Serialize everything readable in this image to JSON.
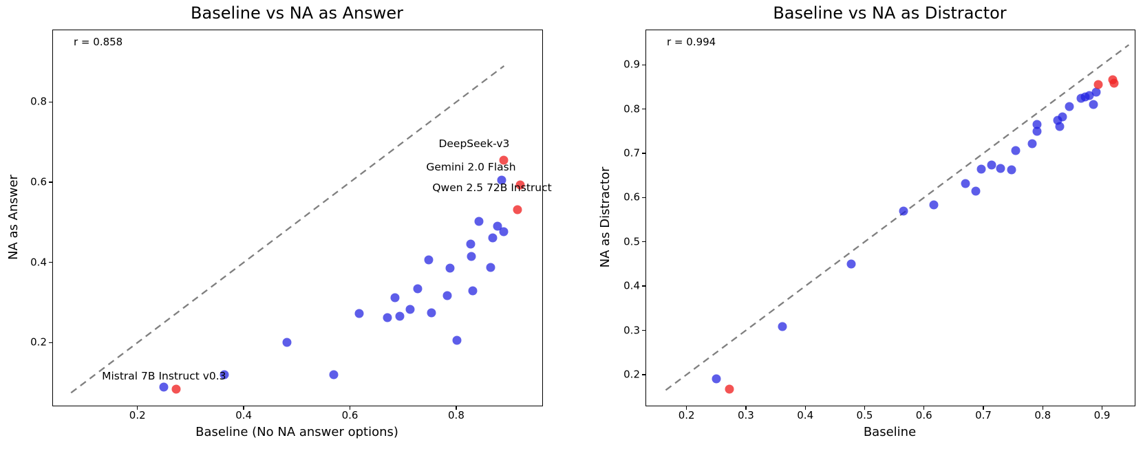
{
  "figure": {
    "background": "#ffffff"
  },
  "colors": {
    "blue_marker": "rgba(30,30,225,0.72)",
    "red_marker": "rgba(240,35,35,0.78)",
    "identity_line": "#7f7f7f",
    "spine": "#000000",
    "text": "#000000"
  },
  "chart_data": [
    {
      "type": "scatter",
      "title": "Baseline vs NA as Answer",
      "r_annotation": "r = 0.858",
      "xlabel": "Baseline (No NA answer options)",
      "ylabel": "NA as Answer",
      "xticks": [
        "0.2",
        "0.4",
        "0.6",
        "0.8"
      ],
      "yticks": [
        "0.2",
        "0.4",
        "0.6",
        "0.8"
      ],
      "xlim": [
        0.041,
        0.962
      ],
      "ylim": [
        0.043,
        0.979
      ],
      "grid": false,
      "legend": "none",
      "identity_line": {
        "type": "y=x",
        "dashed": true,
        "from": 0.075,
        "to": 0.89
      },
      "series": [
        {
          "name": "models",
          "marker": "circle",
          "color_key": "blue_marker",
          "points": [
            [
              0.249,
              0.089
            ],
            [
              0.364,
              0.12
            ],
            [
              0.481,
              0.2
            ],
            [
              0.57,
              0.121
            ],
            [
              0.617,
              0.272
            ],
            [
              0.67,
              0.263
            ],
            [
              0.694,
              0.266
            ],
            [
              0.713,
              0.283
            ],
            [
              0.754,
              0.274
            ],
            [
              0.685,
              0.313
            ],
            [
              0.728,
              0.335
            ],
            [
              0.783,
              0.318
            ],
            [
              0.831,
              0.33
            ],
            [
              0.801,
              0.206
            ],
            [
              0.748,
              0.406
            ],
            [
              0.789,
              0.386
            ],
            [
              0.865,
              0.388
            ],
            [
              0.829,
              0.415
            ],
            [
              0.827,
              0.446
            ],
            [
              0.869,
              0.462
            ],
            [
              0.889,
              0.477
            ],
            [
              0.878,
              0.49
            ],
            [
              0.843,
              0.503
            ],
            [
              0.886,
              0.605
            ]
          ]
        },
        {
          "name": "highlighted-models",
          "marker": "circle",
          "color_key": "red_marker",
          "points": [
            [
              0.273,
              0.085
            ],
            [
              0.915,
              0.532
            ],
            [
              0.92,
              0.593
            ],
            [
              0.89,
              0.655
            ]
          ],
          "point_labels": [
            "Mistral 7B Instruct v0.3",
            "Qwen 2.5 72B Instruct",
            "Gemini 2.0 Flash",
            "DeepSeek-v3"
          ]
        }
      ]
    },
    {
      "type": "scatter",
      "title": "Baseline vs NA as Distractor",
      "r_annotation": "r = 0.994",
      "xlabel": "Baseline",
      "ylabel": "NA as Distractor",
      "xticks": [
        "0.2",
        "0.3",
        "0.4",
        "0.5",
        "0.6",
        "0.7",
        "0.8",
        "0.9"
      ],
      "yticks": [
        "0.2",
        "0.3",
        "0.4",
        "0.5",
        "0.6",
        "0.7",
        "0.8",
        "0.9"
      ],
      "xlim": [
        0.132,
        0.955
      ],
      "ylim": [
        0.13,
        0.978
      ],
      "grid": false,
      "legend": "none",
      "identity_line": {
        "type": "y=x",
        "dashed": true,
        "from": 0.165,
        "to": 0.945
      },
      "series": [
        {
          "name": "models",
          "marker": "circle",
          "color_key": "blue_marker",
          "points": [
            [
              0.25,
              0.19
            ],
            [
              0.362,
              0.309
            ],
            [
              0.477,
              0.45
            ],
            [
              0.565,
              0.57
            ],
            [
              0.617,
              0.583
            ],
            [
              0.67,
              0.632
            ],
            [
              0.687,
              0.615
            ],
            [
              0.696,
              0.665
            ],
            [
              0.714,
              0.673
            ],
            [
              0.729,
              0.666
            ],
            [
              0.747,
              0.663
            ],
            [
              0.755,
              0.706
            ],
            [
              0.782,
              0.722
            ],
            [
              0.79,
              0.749
            ],
            [
              0.79,
              0.766
            ],
            [
              0.825,
              0.774
            ],
            [
              0.829,
              0.761
            ],
            [
              0.833,
              0.782
            ],
            [
              0.845,
              0.805
            ],
            [
              0.865,
              0.824
            ],
            [
              0.872,
              0.827
            ],
            [
              0.878,
              0.831
            ],
            [
              0.885,
              0.81
            ],
            [
              0.89,
              0.838
            ]
          ]
        },
        {
          "name": "highlighted-models",
          "marker": "circle",
          "color_key": "red_marker",
          "points": [
            [
              0.272,
              0.168
            ],
            [
              0.893,
              0.855
            ],
            [
              0.918,
              0.866
            ],
            [
              0.92,
              0.859
            ]
          ]
        }
      ]
    }
  ]
}
